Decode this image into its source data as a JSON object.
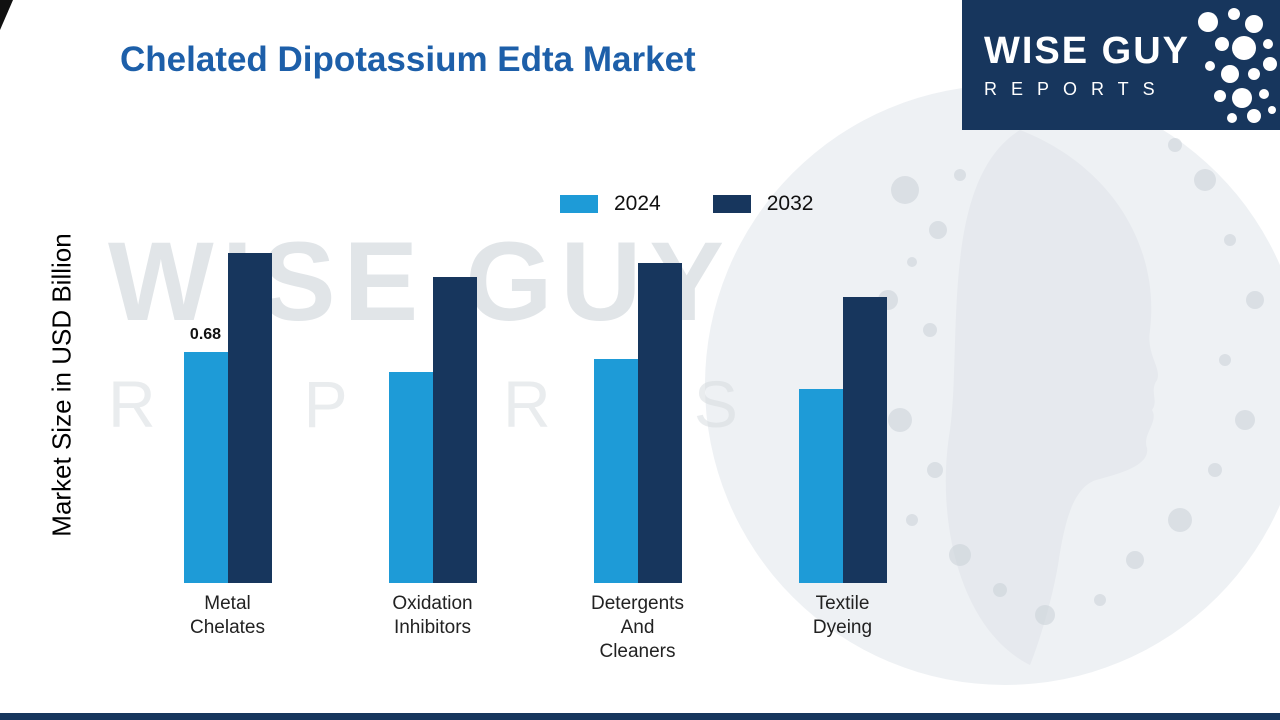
{
  "page": {
    "title": "Chelated Dipotassium Edta Market"
  },
  "logo": {
    "line1": "WISE GUY",
    "line2": "REPORTS"
  },
  "watermark": {
    "line1": "WISE GUY",
    "line2": "REPORTS"
  },
  "chart_data": {
    "type": "bar",
    "title": "Chelated Dipotassium Edta Market",
    "ylabel": "Market Size in USD Billion",
    "xlabel": "",
    "categories": [
      "Metal Chelates",
      "Oxidation Inhibitors",
      "Detergents And Cleaners",
      "Textile Dyeing"
    ],
    "series": [
      {
        "name": "2024",
        "color": "#1e9bd7",
        "values": [
          0.68,
          0.62,
          0.66,
          0.57
        ],
        "value_labels": [
          "0.68",
          "",
          "",
          ""
        ]
      },
      {
        "name": "2032",
        "color": "#17365d",
        "values": [
          0.97,
          0.9,
          0.94,
          0.84
        ],
        "value_labels": [
          "",
          "",
          "",
          ""
        ]
      }
    ],
    "ylim": [
      0,
      1.05
    ],
    "grid": false,
    "legend_position": "top"
  },
  "colors": {
    "title": "#1d5fa9",
    "series_2024": "#1e9bd7",
    "series_2032": "#17365d",
    "logo_bg": "#17365d",
    "footer_bar": "#17365d"
  }
}
